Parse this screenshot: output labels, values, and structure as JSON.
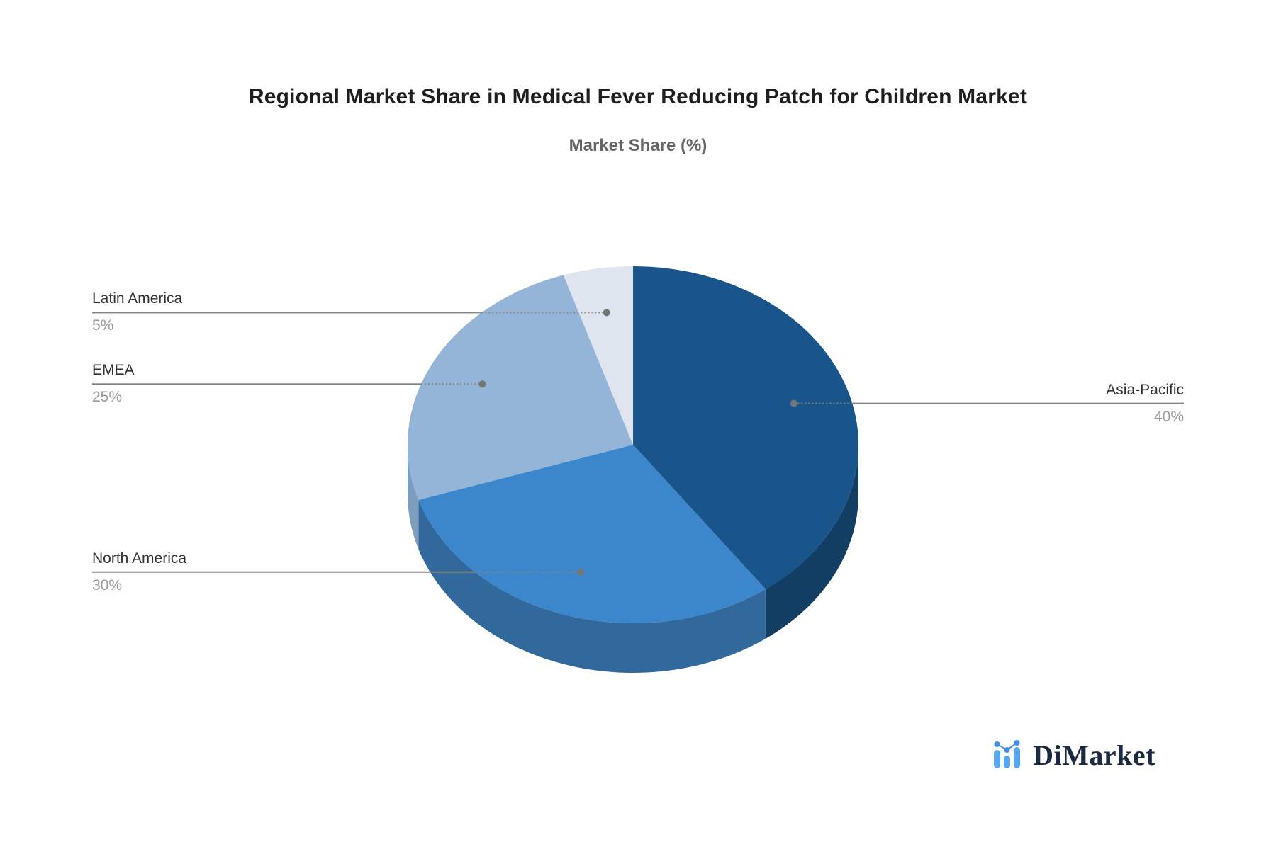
{
  "title": "Regional Market Share in Medical Fever Reducing Patch for Children Market",
  "subtitle": "Market Share (%)",
  "logo": {
    "text": "DiMarket",
    "icon": "bar-line-chart-icon"
  },
  "chart_data": {
    "type": "pie",
    "effect_3d": true,
    "unit": "%",
    "title": "Regional Market Share in Medical Fever Reducing Patch for Children Market",
    "subtitle": "Market Share (%)",
    "start_angle_deg": 0,
    "direction": "clockwise",
    "legend": "none",
    "slices": [
      {
        "label": "Asia-Pacific",
        "value": 40,
        "pct_label": "40%",
        "color": "#19558B",
        "rim_color": "#123E63",
        "label_side": "right"
      },
      {
        "label": "North America",
        "value": 30,
        "pct_label": "30%",
        "color": "#3C87CB",
        "rim_color": "#31699C",
        "label_side": "left"
      },
      {
        "label": "EMEA",
        "value": 25,
        "pct_label": "25%",
        "color": "#94B5D8",
        "rim_color": "#7E9CBE",
        "label_side": "left"
      },
      {
        "label": "Latin America",
        "value": 5,
        "pct_label": "5%",
        "color": "#DEE5EF",
        "rim_color": "#C8D4E4",
        "label_side": "left"
      }
    ],
    "colors": {
      "connector_line": "#858585",
      "connector_dot": "#757575",
      "label_text": "#333333",
      "pct_text": "#999999"
    }
  }
}
